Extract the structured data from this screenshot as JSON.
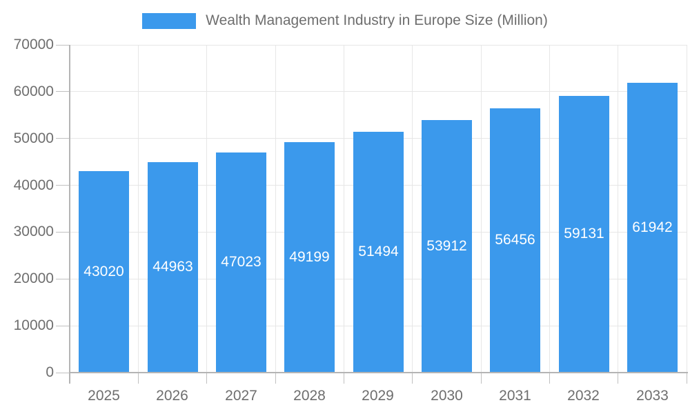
{
  "legend": {
    "label": "Wealth Management Industry in Europe Size (Million)"
  },
  "colors": {
    "bar": "#3B99EC",
    "grid": "#e6e6e6",
    "axis": "#b4b4b4",
    "tick": "#c0c0c0",
    "text": "#6e6e6e",
    "value_label": "#ffffff",
    "background": "#ffffff"
  },
  "chart_data": {
    "type": "bar",
    "title": "Wealth Management Industry in Europe Size (Million)",
    "series_name": "Wealth Management Industry in Europe Size (Million)",
    "categories": [
      "2025",
      "2026",
      "2027",
      "2028",
      "2029",
      "2030",
      "2031",
      "2032",
      "2033"
    ],
    "values": [
      43020,
      44963,
      47023,
      49199,
      51494,
      53912,
      56456,
      59131,
      61942
    ],
    "xlabel": "",
    "ylabel": "",
    "ylim": [
      0,
      70000
    ],
    "yticks": [
      0,
      10000,
      20000,
      30000,
      40000,
      50000,
      60000,
      70000
    ],
    "grid": true,
    "legend_position": "top",
    "value_labels": "inside-center-white"
  }
}
